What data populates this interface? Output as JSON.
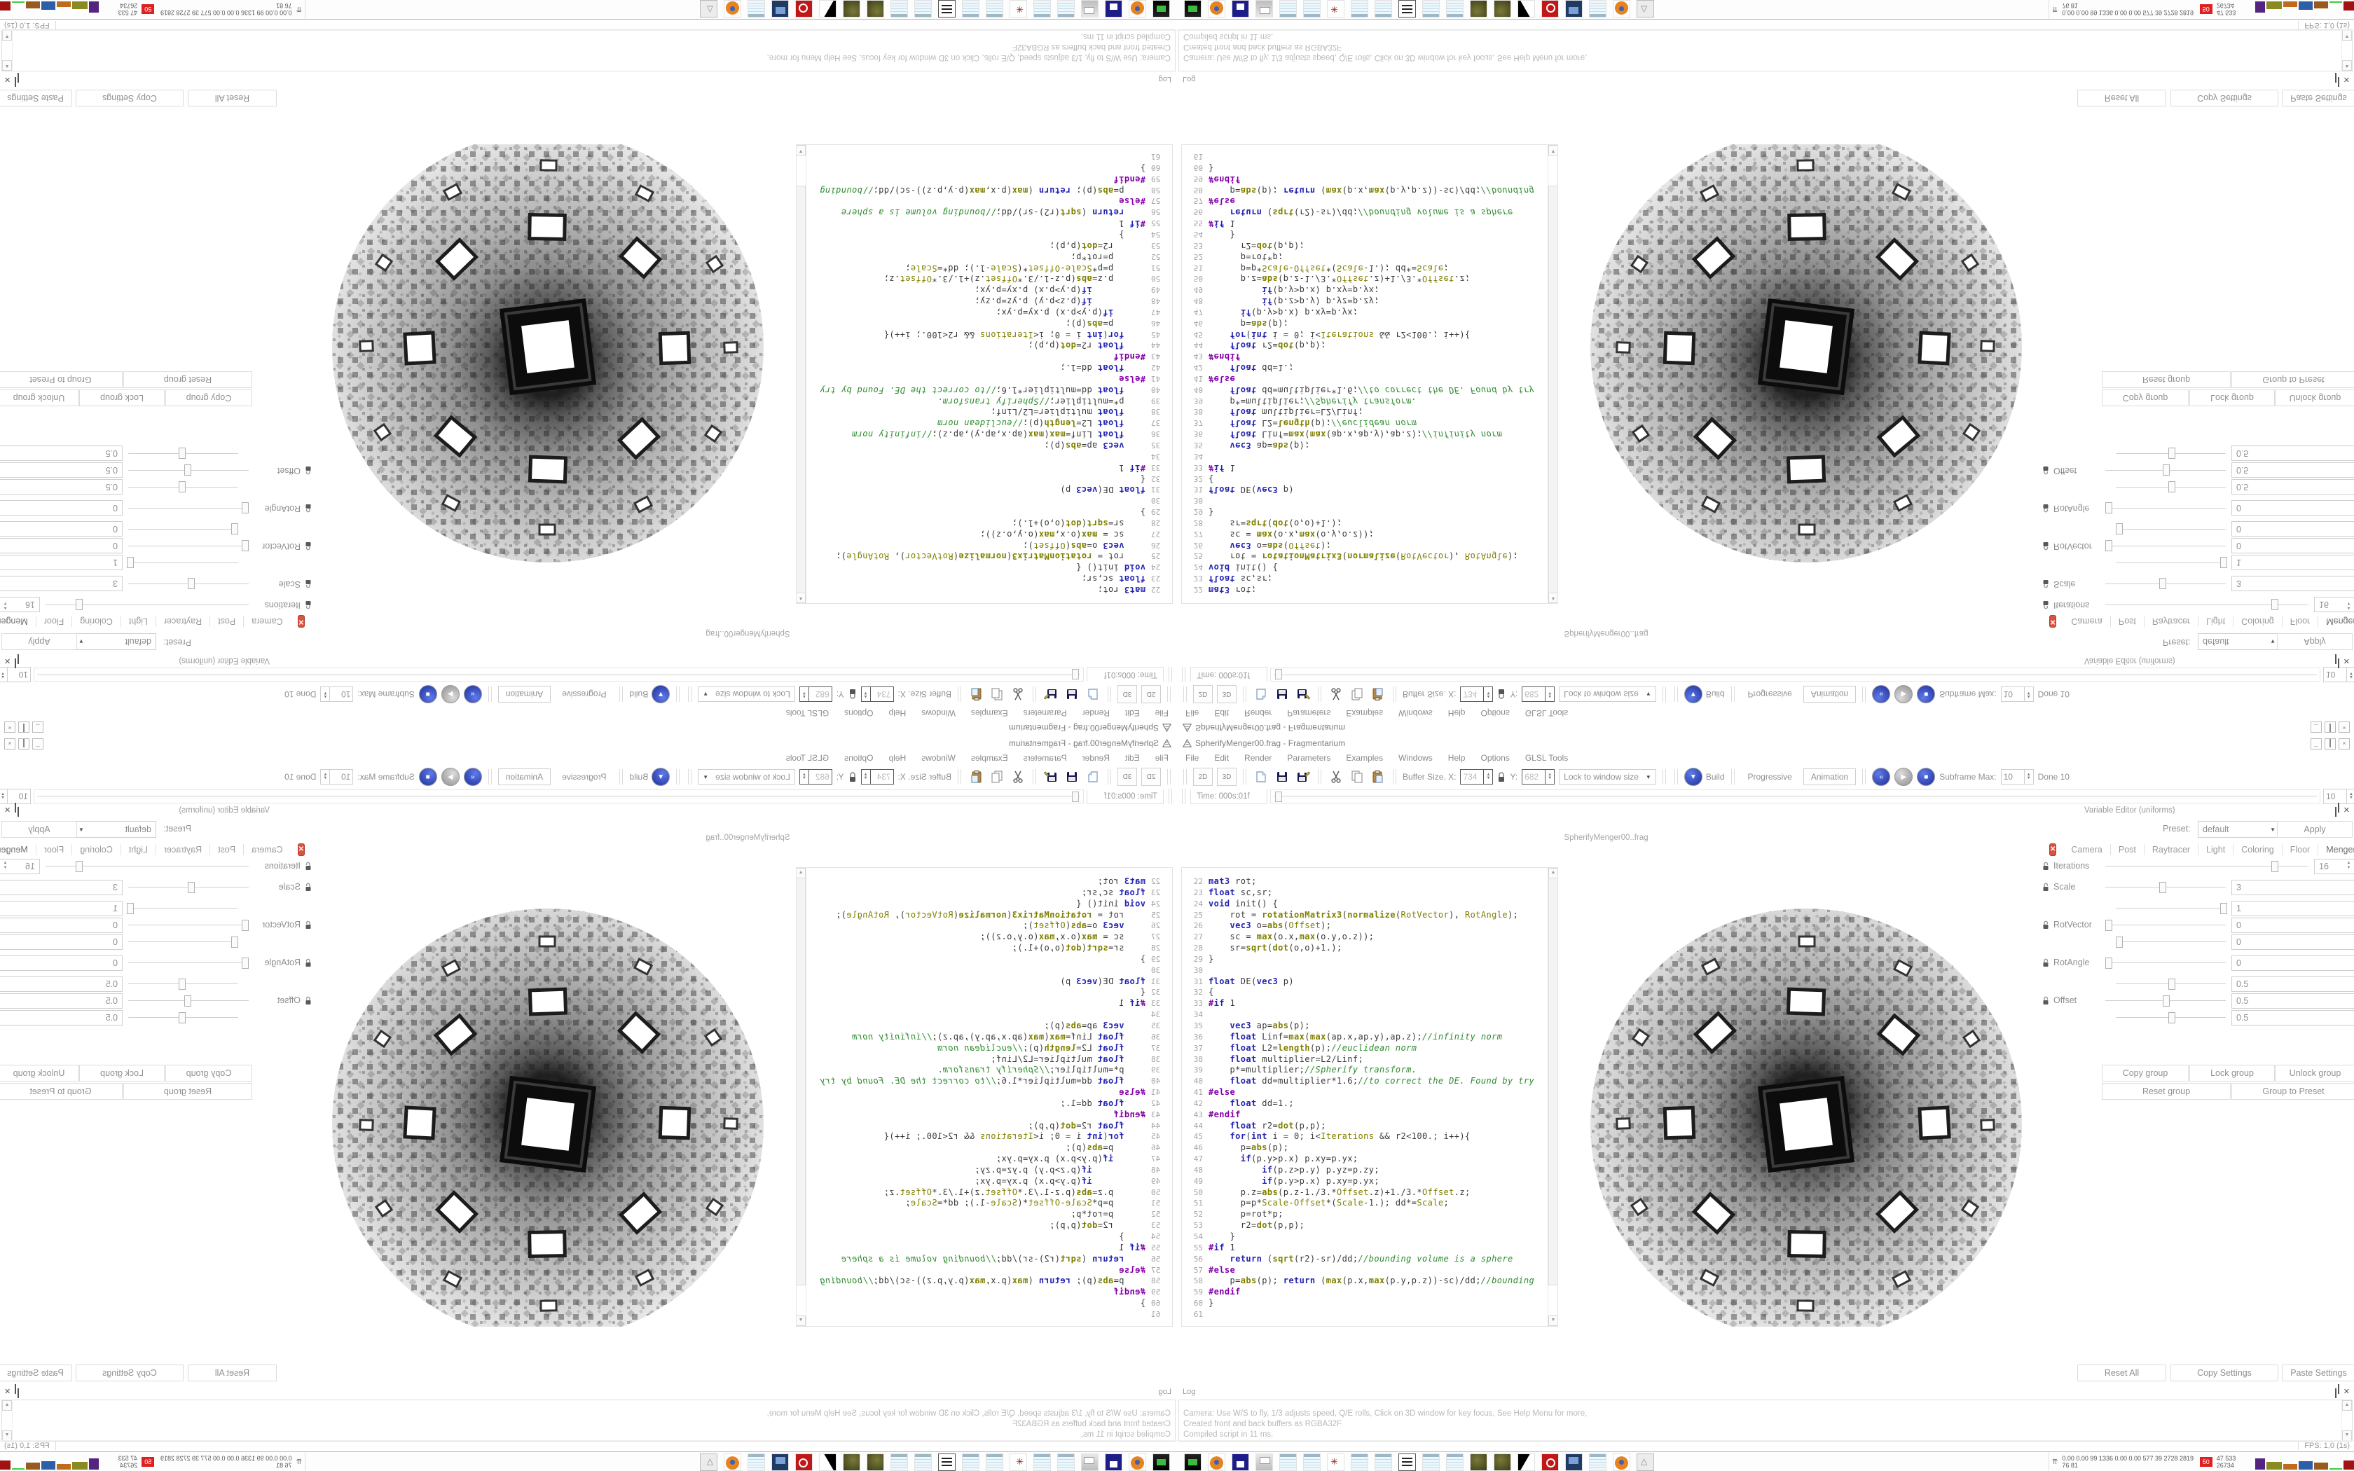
{
  "window": {
    "title": "SpherifyMenger00.frag - Fragmentarium",
    "menu": [
      "File",
      "Edit",
      "Render",
      "Parameters",
      "Examples",
      "Windows",
      "Help",
      "Options",
      "GLSL Tools"
    ]
  },
  "toolbar": {
    "btn_2d": "2D",
    "btn_3d": "3D",
    "buffer_size_label": "Buffer Size. X:",
    "buffer_x": "734",
    "y_label": "Y:",
    "buffer_y": "682",
    "lock_combo_value": "Lock to window size",
    "build_label": "Build",
    "progressive_label": "Progressive",
    "animation_label": "Animation",
    "subframe_label": "Subframe Max:",
    "subframe_value": "10",
    "done_label": "Done 10"
  },
  "timerow": {
    "label": "Time: 000s:01f",
    "spin_value": "10"
  },
  "mdi": {
    "tab": "SpherifyMenger00..frag"
  },
  "editor": {
    "lines": [
      [
        22,
        "mat3 rot;"
      ],
      [
        23,
        "float sc,sr;"
      ],
      [
        24,
        "void init() {"
      ],
      [
        25,
        "    rot = rotationMatrix3(normalize(RotVector), RotAngle);"
      ],
      [
        26,
        "    vec3 o=abs(Offset);"
      ],
      [
        27,
        "    sc = max(o.x,max(o.y,o.z));"
      ],
      [
        28,
        "    sr=sqrt(dot(o,o)+1.);"
      ],
      [
        29,
        "}"
      ],
      [
        30,
        ""
      ],
      [
        31,
        "float DE(vec3 p)"
      ],
      [
        32,
        "{"
      ],
      [
        33,
        "#if 1"
      ],
      [
        34,
        ""
      ],
      [
        35,
        "    vec3 ap=abs(p);"
      ],
      [
        36,
        "    float Linf=max(max(ap.x,ap.y),ap.z);//infinity norm"
      ],
      [
        37,
        "    float L2=length(p);//euclidean norm"
      ],
      [
        38,
        "    float multiplier=L2/Linf;"
      ],
      [
        39,
        "    p*=multiplier;//Spherify transform."
      ],
      [
        40,
        "    float dd=multiplier*1.6;//to correct the DE. Found by try"
      ],
      [
        41,
        "#else"
      ],
      [
        42,
        "    float dd=1.;"
      ],
      [
        43,
        "#endif"
      ],
      [
        44,
        "    float r2=dot(p,p);"
      ],
      [
        45,
        "    for(int i = 0; i<Iterations && r2<100.; i++){"
      ],
      [
        46,
        "      p=abs(p);"
      ],
      [
        47,
        "      if(p.y>p.x) p.xy=p.yx;"
      ],
      [
        48,
        "          if(p.z>p.y) p.yz=p.zy;"
      ],
      [
        49,
        "          if(p.y>p.x) p.xy=p.yx;"
      ],
      [
        50,
        "      p.z=abs(p.z-1./3.*Offset.z)+1./3.*Offset.z;"
      ],
      [
        51,
        "      p=p*Scale-Offset*(Scale-1.); dd*=Scale;"
      ],
      [
        52,
        "      p=rot*p;"
      ],
      [
        53,
        "      r2=dot(p,p);"
      ],
      [
        54,
        "    }"
      ],
      [
        55,
        "#if 1"
      ],
      [
        56,
        "    return (sqrt(r2)-sr)/dd;//bounding volume is a sphere"
      ],
      [
        57,
        "#else"
      ],
      [
        58,
        "    p=abs(p); return (max(p.x,max(p.y,p.z))-sc)/dd;//bounding"
      ],
      [
        59,
        "#endif"
      ],
      [
        60,
        "}"
      ],
      [
        61,
        ""
      ]
    ]
  },
  "variable_editor": {
    "title": "Variable Editor (uniforms)",
    "preset_label": "Preset:",
    "preset_value": "default",
    "apply_label": "Apply",
    "tabs": [
      "Camera",
      "Post",
      "Raytracer",
      "Light",
      "Coloring",
      "Floor",
      "Menger"
    ],
    "active_tab": "Menger",
    "rows": [
      {
        "label": "Iterations",
        "value": "16",
        "fill": 0.84,
        "narrow": true,
        "spin": true
      },
      {
        "label": "Scale",
        "value": "3",
        "fill": 0.47,
        "gap": true
      },
      {
        "label": "",
        "value": "1",
        "fill": 1.0,
        "gap": true
      },
      {
        "label": "RotVector",
        "value": "0",
        "fill": 0.0
      },
      {
        "label": "",
        "value": "0",
        "fill": 0.0
      },
      {
        "label": "RotAngle",
        "value": "0",
        "fill": 0.0,
        "gap": true
      },
      {
        "label": "",
        "value": "0.5",
        "fill": 0.5,
        "gap": true
      },
      {
        "label": "Offset",
        "value": "0.5",
        "fill": 0.5
      },
      {
        "label": "",
        "value": "0.5",
        "fill": 0.5
      }
    ],
    "group_buttons_row1": [
      "Copy group",
      "Lock group",
      "Unlock group"
    ],
    "group_buttons_row2": [
      "Reset group",
      "Group to Preset"
    ],
    "bottom_buttons": [
      "Reset All",
      "Copy Settings",
      "Paste Settings"
    ]
  },
  "log": {
    "title": "Log",
    "lines": [
      "Camera: Use W/S to fly, 1/3 adjusts speed, Q/E rolls, Click on 3D window for key focus, See Help Menu for more,",
      "Created front and back buffers as RGBA32F",
      "Compiled script in 11 ms,"
    ]
  },
  "status": {
    "fps": "FPS: 1,0 (1s)"
  },
  "taskbar": {
    "icons": [
      "terminal",
      "firefox",
      "floppy",
      "printer",
      "notepad",
      "notepad",
      "splat",
      "notepad",
      "notepad",
      "doc",
      "notepad",
      "notepad",
      "globe",
      "globe",
      "bw",
      "red",
      "monitor",
      "notepad",
      "firefox",
      "frag"
    ],
    "monitor": {
      "prefix": "⇈",
      "text1": "0.00 0.00  99  1336 0.00 0.00  577  39  2728 2819  76  81",
      "alert": "50",
      "text2": "47  533 26734"
    },
    "graphs": [
      {
        "color": "#55247e",
        "h": 16,
        "w": 14
      },
      {
        "color": "#8a8a20",
        "h": 11,
        "w": 22
      },
      {
        "color": "#bf6a1c",
        "h": 8,
        "w": 20
      },
      {
        "color": "#2d5fa8",
        "h": 12,
        "w": 20
      },
      {
        "color": "#9a5a1d",
        "h": 10,
        "w": 20
      },
      {
        "color": "#44c944",
        "h": 2,
        "w": 18
      },
      {
        "color": "#a31212",
        "h": 13,
        "w": 16
      }
    ]
  },
  "colors": {
    "accent_blue": "#1c2f9e",
    "red_close": "#d85440",
    "alert_red": "#e02020"
  }
}
